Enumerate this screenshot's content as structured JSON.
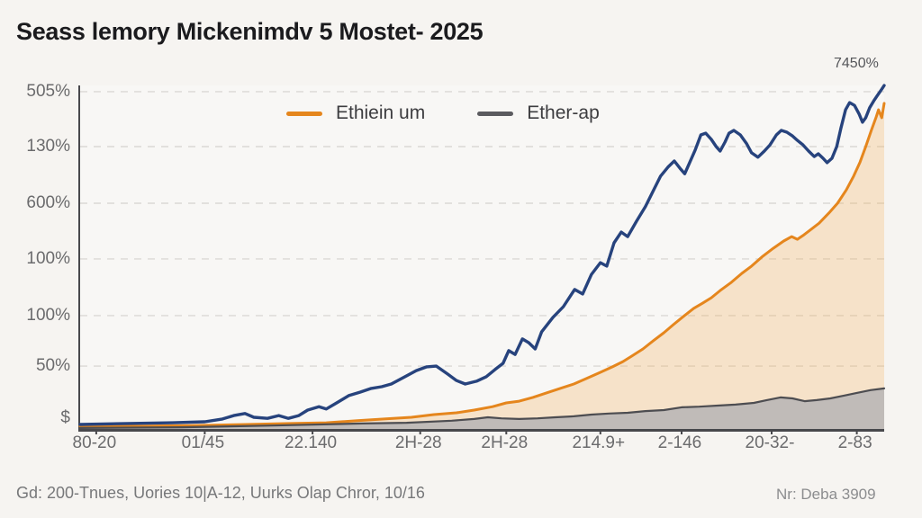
{
  "footer": {
    "left": "Gd: 200-Tnues, Uories 10|A-12, Uurks Olap Chror, 10/16",
    "right": "Nr: Deba 3909"
  },
  "chart_data": {
    "type": "line",
    "title": "Seass lemory Mickenimdv 5 Mostet- 2025",
    "annotation": {
      "text": "7450%"
    },
    "legend_position": "top-center",
    "grid": "horizontal-dashed",
    "axis_note": "source labels are garbled; series y-values are percent of plot height (0=baseline, 100=top), x-values are percent of plot width",
    "yticks": [
      {
        "label": "505%",
        "pos": 98.2,
        "gridline": true
      },
      {
        "label": "130%",
        "pos": 82.2,
        "gridline": true
      },
      {
        "label": "600%",
        "pos": 65.7,
        "gridline": true
      },
      {
        "label": "100%",
        "pos": 49.5,
        "gridline": true
      },
      {
        "label": "100%",
        "pos": 33.0,
        "gridline": true
      },
      {
        "label": "50%",
        "pos": 18.3,
        "gridline": true
      },
      {
        "label": "$",
        "pos": 3.1,
        "gridline": false
      }
    ],
    "xticks": [
      {
        "label": "80-20",
        "pos": 2.0
      },
      {
        "label": "01/45",
        "pos": 15.5
      },
      {
        "label": "22.140",
        "pos": 28.9
      },
      {
        "label": "2H-28",
        "pos": 42.3
      },
      {
        "label": "2H-28",
        "pos": 53.0
      },
      {
        "label": "214.9+",
        "pos": 64.7
      },
      {
        "label": "2-146",
        "pos": 74.8
      },
      {
        "label": "20-32-",
        "pos": 86.0
      },
      {
        "label": "2-83",
        "pos": 96.6
      }
    ],
    "legend": [
      {
        "id": "ethiein-um",
        "label": "Ethiein um",
        "color": "#e5861d"
      },
      {
        "id": "ether-ap",
        "label": "Ether-ap",
        "color": "#5b5b5f"
      }
    ],
    "series": [
      {
        "id": "ethiein-um",
        "name": "Ethiein um",
        "color": "#e5861d",
        "width": 3,
        "fill": "#f0ab55",
        "fill_opacity": 0.28,
        "points": [
          [
            0,
            0.8
          ],
          [
            7.1,
            0.8
          ],
          [
            13.8,
            1
          ],
          [
            20.5,
            1.3
          ],
          [
            26.1,
            1.6
          ],
          [
            30.6,
            1.8
          ],
          [
            34.5,
            2.4
          ],
          [
            37.8,
            2.9
          ],
          [
            41.2,
            3.4
          ],
          [
            44,
            4.2
          ],
          [
            46.8,
            4.7
          ],
          [
            49,
            5.5
          ],
          [
            51.3,
            6.5
          ],
          [
            53,
            7.6
          ],
          [
            54.6,
            8.1
          ],
          [
            56.3,
            9.2
          ],
          [
            58,
            10.5
          ],
          [
            59.7,
            11.8
          ],
          [
            61.4,
            13.1
          ],
          [
            63,
            14.7
          ],
          [
            64.7,
            16.5
          ],
          [
            66.2,
            18.1
          ],
          [
            67.5,
            19.6
          ],
          [
            68.6,
            21.2
          ],
          [
            70,
            23.3
          ],
          [
            71.3,
            25.7
          ],
          [
            72.6,
            28
          ],
          [
            73.8,
            30.4
          ],
          [
            75,
            32.7
          ],
          [
            76.3,
            35.1
          ],
          [
            77.4,
            36.6
          ],
          [
            78.5,
            38.2
          ],
          [
            79.6,
            40.3
          ],
          [
            81,
            42.7
          ],
          [
            82.3,
            45.3
          ],
          [
            83.5,
            47.4
          ],
          [
            84.9,
            50.3
          ],
          [
            86.2,
            52.6
          ],
          [
            87.5,
            54.7
          ],
          [
            88.5,
            56
          ],
          [
            89.2,
            55.2
          ],
          [
            89.9,
            56.3
          ],
          [
            90.8,
            57.9
          ],
          [
            91.9,
            59.9
          ],
          [
            93.1,
            62.8
          ],
          [
            94.2,
            65.7
          ],
          [
            95.3,
            69.6
          ],
          [
            96.2,
            73.6
          ],
          [
            97,
            77.7
          ],
          [
            97.7,
            82.2
          ],
          [
            98.4,
            86.9
          ],
          [
            99,
            90.8
          ],
          [
            99.3,
            92.9
          ],
          [
            99.7,
            90.6
          ],
          [
            100,
            94.8
          ]
        ]
      },
      {
        "id": "ether-ap",
        "name": "Ether-ap",
        "color": "#4d4d51",
        "width": 2.2,
        "fill": "#b3b2b4",
        "fill_opacity": 0.8,
        "points": [
          [
            0,
            0.3
          ],
          [
            12.7,
            0.5
          ],
          [
            23.9,
            1
          ],
          [
            35.1,
            1.6
          ],
          [
            40.6,
            1.8
          ],
          [
            46.2,
            2.4
          ],
          [
            49,
            2.9
          ],
          [
            50.7,
            3.4
          ],
          [
            52.4,
            3.1
          ],
          [
            54.6,
            2.9
          ],
          [
            56.9,
            3.1
          ],
          [
            59.1,
            3.4
          ],
          [
            61.4,
            3.7
          ],
          [
            63.6,
            4.2
          ],
          [
            65.8,
            4.5
          ],
          [
            68.1,
            4.7
          ],
          [
            70.3,
            5.2
          ],
          [
            72.6,
            5.5
          ],
          [
            74.8,
            6.3
          ],
          [
            77,
            6.5
          ],
          [
            79.3,
            6.8
          ],
          [
            81.5,
            7.1
          ],
          [
            83.8,
            7.6
          ],
          [
            85.4,
            8.4
          ],
          [
            87.1,
            9.2
          ],
          [
            88.6,
            8.9
          ],
          [
            90.1,
            8.1
          ],
          [
            91.6,
            8.4
          ],
          [
            93.3,
            8.9
          ],
          [
            95,
            9.7
          ],
          [
            96.6,
            10.5
          ],
          [
            98.3,
            11.3
          ],
          [
            100,
            11.8
          ]
        ]
      },
      {
        "id": "blue",
        "name": "(unlabeled navy line)",
        "color": "#27437d",
        "width": 3.4,
        "fill": null,
        "fill_opacity": 0,
        "points": [
          [
            0,
            1.3
          ],
          [
            5.9,
            1.6
          ],
          [
            11.5,
            1.8
          ],
          [
            15.5,
            2.1
          ],
          [
            17.7,
            2.9
          ],
          [
            19.1,
            3.9
          ],
          [
            20.5,
            4.5
          ],
          [
            21.6,
            3.4
          ],
          [
            23.3,
            3.1
          ],
          [
            24.7,
            3.9
          ],
          [
            25.9,
            3.1
          ],
          [
            27.2,
            3.9
          ],
          [
            28.3,
            5.5
          ],
          [
            29.7,
            6.5
          ],
          [
            30.6,
            5.8
          ],
          [
            31.9,
            7.6
          ],
          [
            33.4,
            9.7
          ],
          [
            34.8,
            10.7
          ],
          [
            36.2,
            11.8
          ],
          [
            37.5,
            12.3
          ],
          [
            38.7,
            13.1
          ],
          [
            40.4,
            15.2
          ],
          [
            41.8,
            17
          ],
          [
            43.1,
            18.1
          ],
          [
            44.3,
            18.3
          ],
          [
            45.7,
            16
          ],
          [
            46.8,
            14.1
          ],
          [
            47.9,
            13.1
          ],
          [
            49.3,
            13.9
          ],
          [
            50.5,
            15.2
          ],
          [
            51.6,
            17.3
          ],
          [
            52.6,
            19.1
          ],
          [
            53.3,
            22.8
          ],
          [
            54.1,
            21.7
          ],
          [
            55,
            26.2
          ],
          [
            55.8,
            25.1
          ],
          [
            56.6,
            23.3
          ],
          [
            57.4,
            28.3
          ],
          [
            58.8,
            32.5
          ],
          [
            60.1,
            35.6
          ],
          [
            61.5,
            40.6
          ],
          [
            62.5,
            39.3
          ],
          [
            63.6,
            45
          ],
          [
            64.7,
            48.4
          ],
          [
            65.5,
            47.4
          ],
          [
            66.4,
            54.2
          ],
          [
            67.3,
            57.3
          ],
          [
            68.1,
            56
          ],
          [
            69.2,
            60.5
          ],
          [
            70.3,
            64.7
          ],
          [
            71.4,
            69.9
          ],
          [
            72.2,
            73.6
          ],
          [
            73.1,
            76.2
          ],
          [
            73.9,
            78
          ],
          [
            74.6,
            75.9
          ],
          [
            75.2,
            74.3
          ],
          [
            75.8,
            77.5
          ],
          [
            76.5,
            81.2
          ],
          [
            77.2,
            85.6
          ],
          [
            77.8,
            86.1
          ],
          [
            78.5,
            84.3
          ],
          [
            79.1,
            82.2
          ],
          [
            79.6,
            80.9
          ],
          [
            80.2,
            83.5
          ],
          [
            80.7,
            86.1
          ],
          [
            81.3,
            86.9
          ],
          [
            82.1,
            85.6
          ],
          [
            82.9,
            83
          ],
          [
            83.5,
            80.4
          ],
          [
            84.3,
            79.1
          ],
          [
            85.1,
            80.9
          ],
          [
            85.8,
            82.7
          ],
          [
            86.6,
            85.6
          ],
          [
            87.2,
            86.9
          ],
          [
            87.9,
            86.4
          ],
          [
            88.6,
            85.3
          ],
          [
            89.2,
            84
          ],
          [
            89.9,
            82.7
          ],
          [
            90.6,
            80.9
          ],
          [
            91.3,
            79.3
          ],
          [
            91.8,
            80.1
          ],
          [
            92.4,
            78.8
          ],
          [
            92.9,
            77.5
          ],
          [
            93.5,
            78.8
          ],
          [
            94.1,
            82.2
          ],
          [
            94.6,
            87.4
          ],
          [
            95.2,
            92.9
          ],
          [
            95.7,
            95
          ],
          [
            96.3,
            94.2
          ],
          [
            96.9,
            91.6
          ],
          [
            97.3,
            89.3
          ],
          [
            97.7,
            90.6
          ],
          [
            98.2,
            93.5
          ],
          [
            98.7,
            95.5
          ],
          [
            99.1,
            96.9
          ],
          [
            99.7,
            98.9
          ],
          [
            100,
            100
          ]
        ]
      }
    ]
  }
}
